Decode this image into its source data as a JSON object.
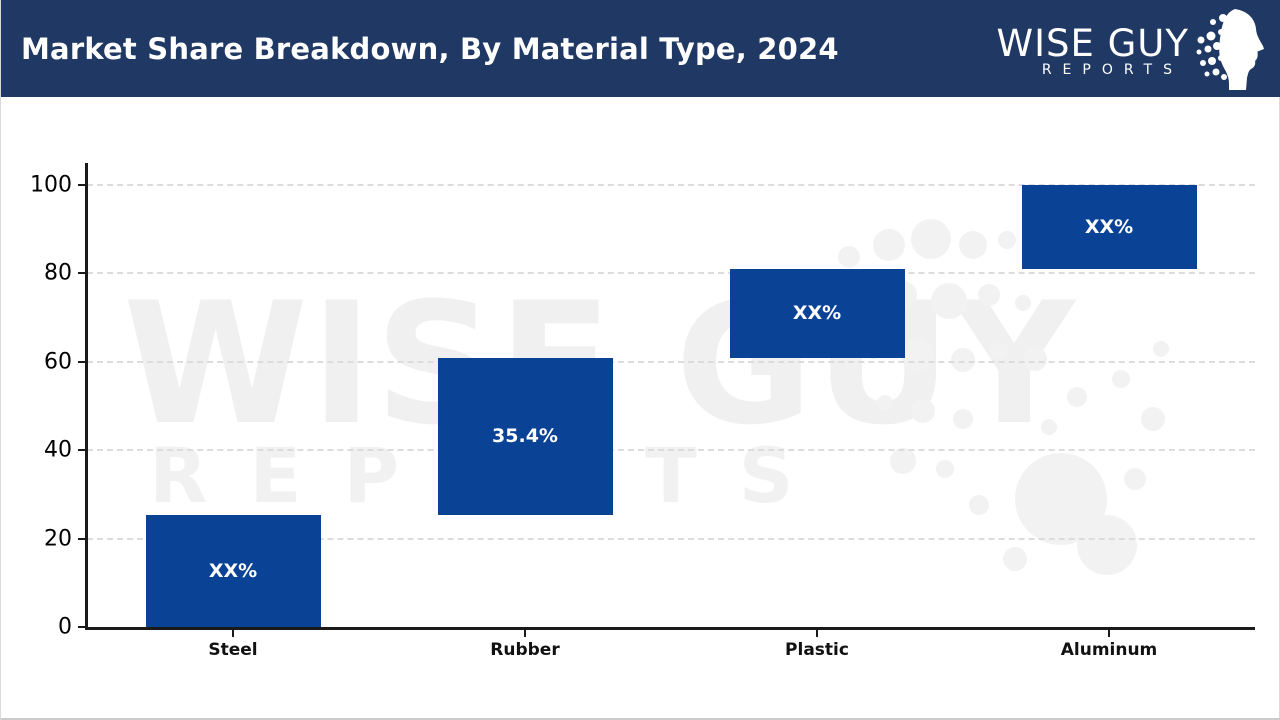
{
  "header": {
    "title": "Market Share Breakdown, By Material Type, 2024",
    "logo": {
      "line1": "WISE GUY",
      "line2": "REPORTS"
    }
  },
  "watermark": {
    "line1": "WISE GUY",
    "line2": "REPORTS"
  },
  "chart_data": {
    "type": "bar",
    "subtype": "floating-waterfall",
    "title": "Market Share Breakdown, By Material Type, 2024",
    "categories": [
      "Steel",
      "Rubber",
      "Plastic",
      "Aluminum"
    ],
    "bars": [
      {
        "category": "Steel",
        "from": 0,
        "to": 25.4,
        "label": "XX%"
      },
      {
        "category": "Rubber",
        "from": 25.4,
        "to": 60.8,
        "label": "35.4%"
      },
      {
        "category": "Plastic",
        "from": 60.8,
        "to": 81.0,
        "label": "XX%"
      },
      {
        "category": "Aluminum",
        "from": 81.0,
        "to": 100,
        "label": "XX%"
      }
    ],
    "yticks": [
      0,
      20,
      40,
      60,
      80,
      100
    ],
    "ylim": [
      0,
      105
    ],
    "grid": "dashed-horizontal",
    "legend": "none",
    "bar_color": "#0a4296",
    "bar_label_color": "#ffffff"
  },
  "colors": {
    "header_bg": "#203864",
    "bar": "#0a4296",
    "grid": "#dcdcdc",
    "axis": "#1a1a1a",
    "watermark": "#f0f0f0"
  }
}
